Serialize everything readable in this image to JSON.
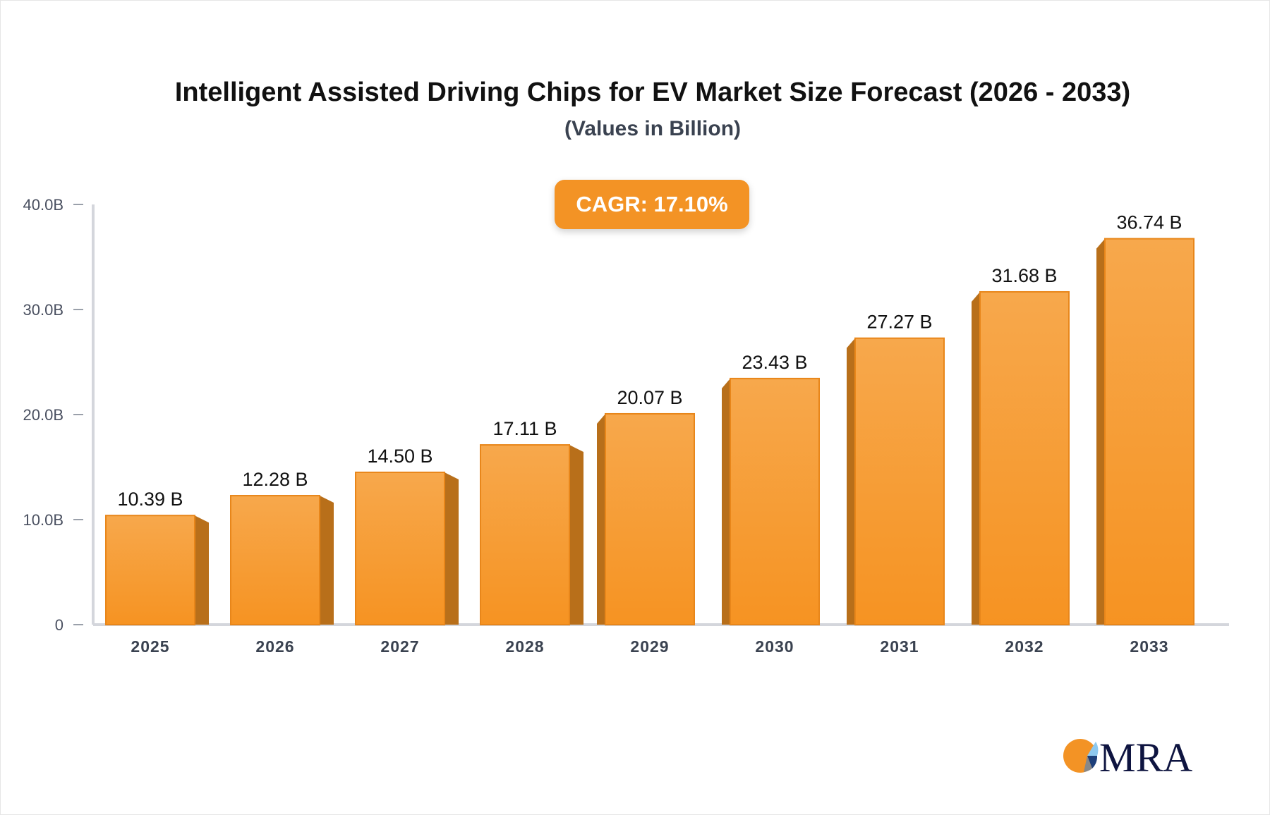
{
  "chart_data": {
    "type": "bar",
    "title": "Intelligent Assisted Driving Chips for EV Market Size Forecast (2026 - 2033)",
    "subtitle": "(Values in Billion)",
    "annotation": "CAGR: 17.10%",
    "categories": [
      "2025",
      "2026",
      "2027",
      "2028",
      "2029",
      "2030",
      "2031",
      "2032",
      "2033"
    ],
    "values": [
      10.39,
      12.28,
      14.5,
      17.11,
      20.07,
      23.43,
      27.27,
      31.68,
      36.74
    ],
    "data_labels": [
      "10.39 B",
      "12.28 B",
      "14.50 B",
      "17.11 B",
      "20.07 B",
      "23.43 B",
      "27.27 B",
      "31.68 B",
      "36.74 B"
    ],
    "ylim": [
      0,
      40
    ],
    "yticks": [
      0,
      10,
      20,
      30,
      40
    ],
    "ytick_labels": [
      "0",
      "10.0B",
      "20.0B",
      "30.0B",
      "40.0B"
    ],
    "grid": false,
    "colors": {
      "bar": "#f7a040",
      "bar_side": "#b86f1a",
      "accent": "#f39325"
    }
  },
  "logo": {
    "text": "MRA"
  }
}
